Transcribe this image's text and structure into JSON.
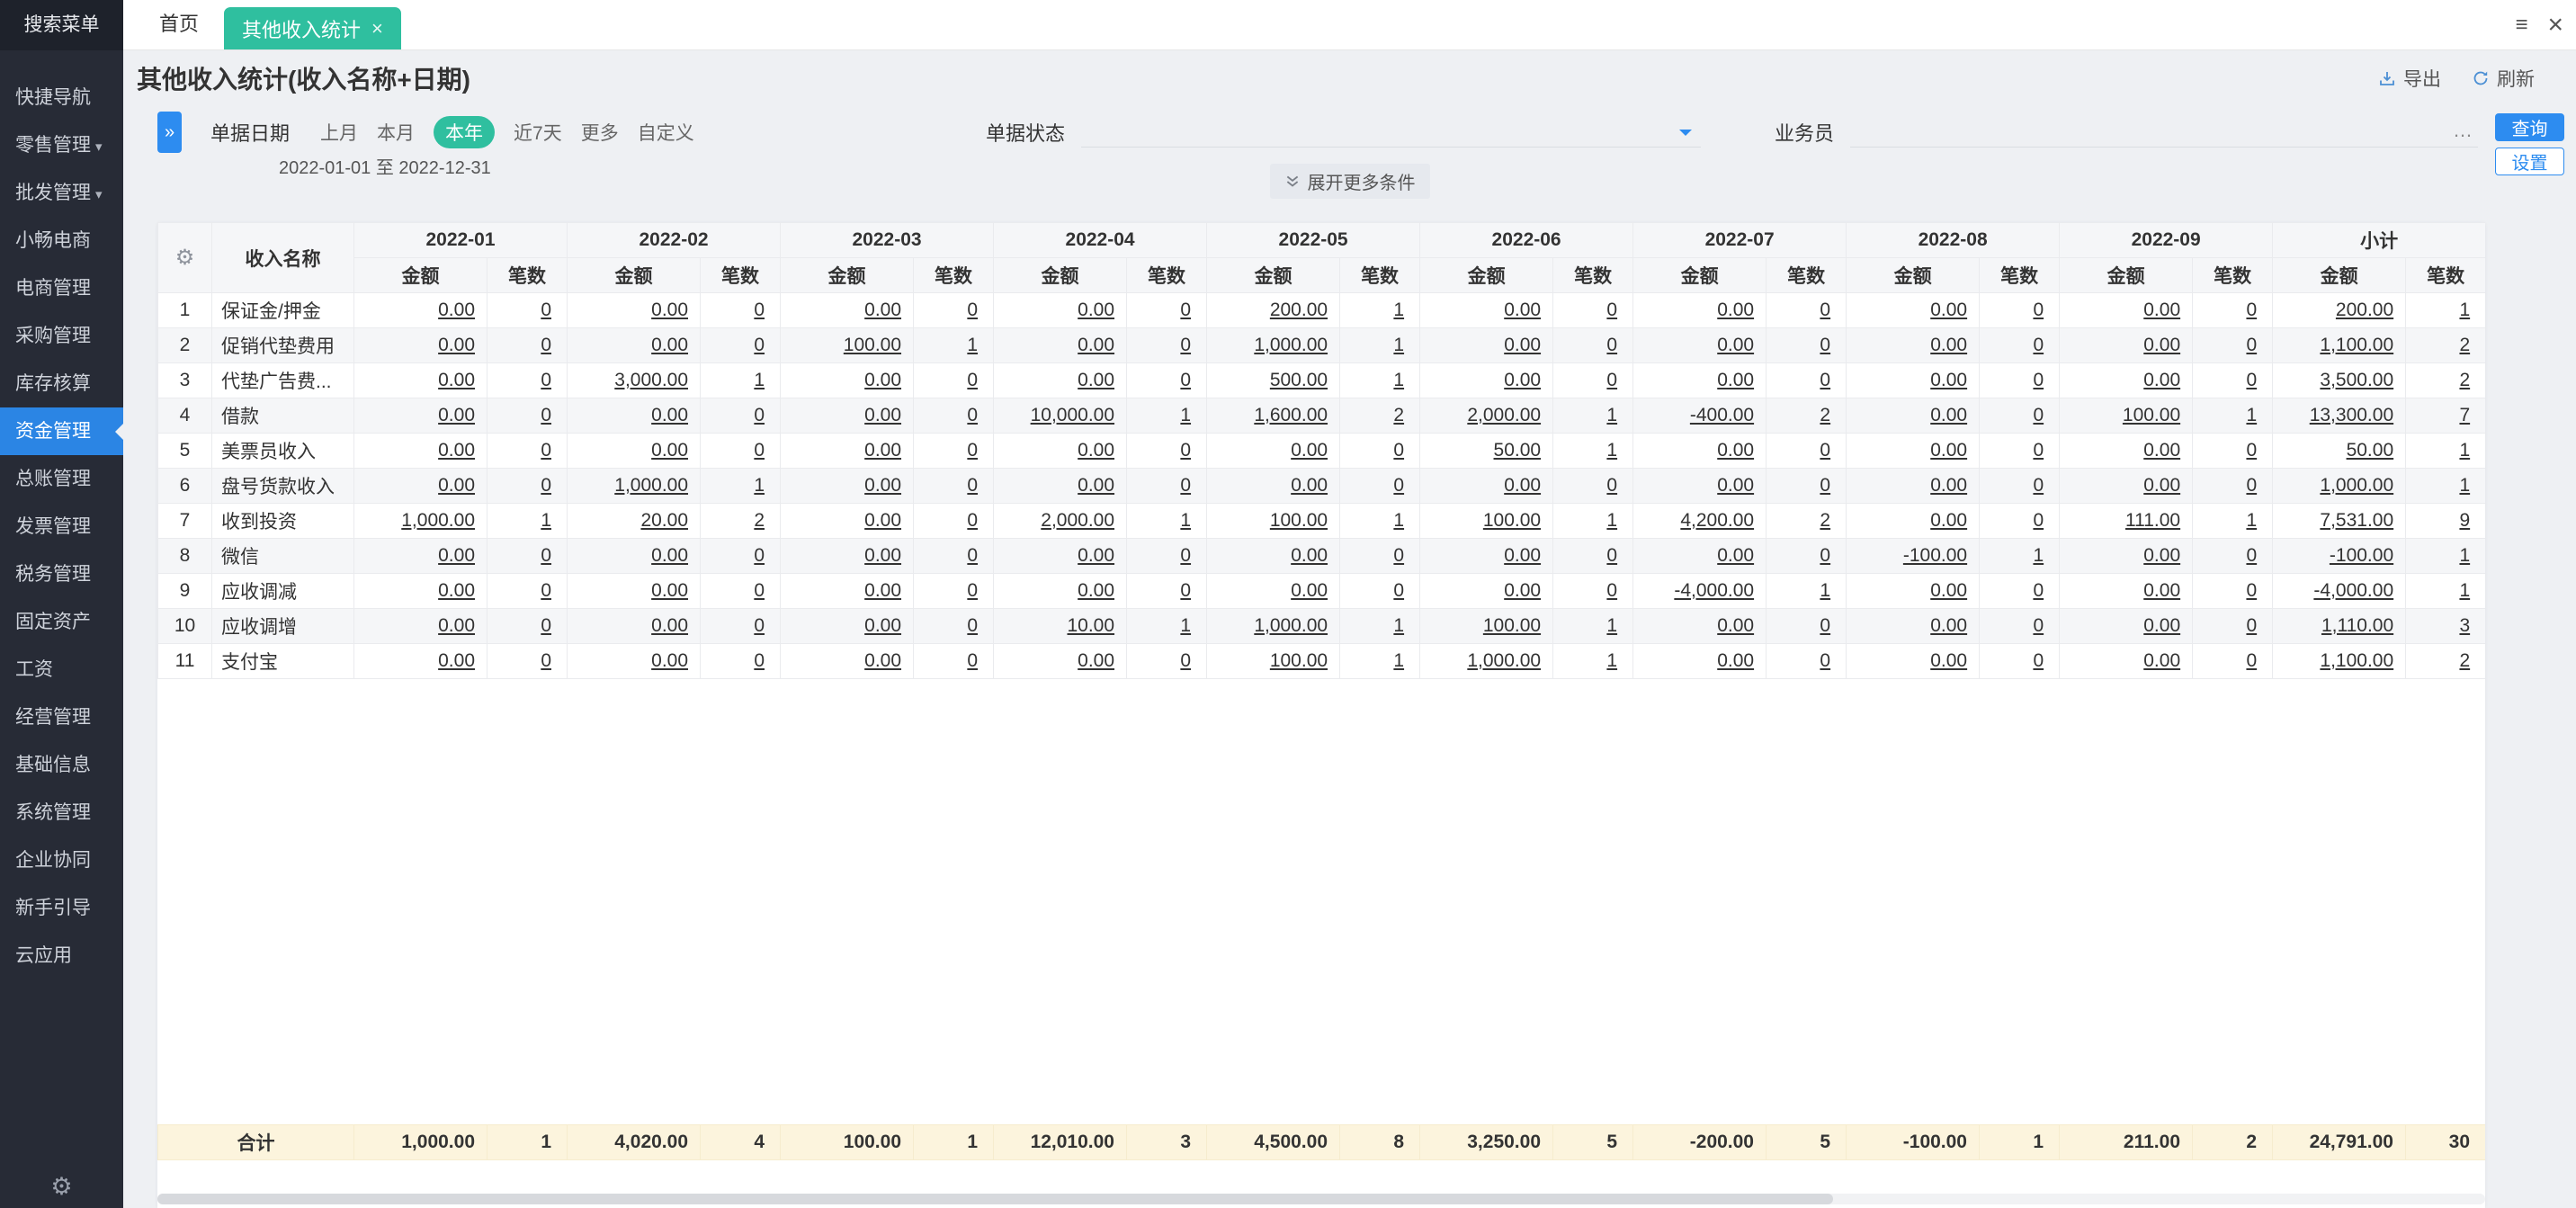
{
  "colors": {
    "accent_blue": "#2d8cf0",
    "tab_green": "#2fbf9f",
    "sidebar_bg": "#272b36",
    "sidebar_selected": "#2b85e4",
    "negative_red": "#e02b2b",
    "totals_bg": "#fcf4dd"
  },
  "icons": {
    "collapse": "»",
    "caret": "▾",
    "gear": "⚙",
    "close": "×",
    "tab_menu": "≡",
    "ellipsis": "…"
  },
  "sidebar": {
    "search_label": "搜索菜单",
    "items": [
      {
        "label": "快捷导航",
        "caret": false,
        "selected": false
      },
      {
        "label": "零售管理",
        "caret": true,
        "selected": false
      },
      {
        "label": "批发管理",
        "caret": true,
        "selected": false
      },
      {
        "label": "小畅电商",
        "caret": false,
        "selected": false
      },
      {
        "label": "电商管理",
        "caret": false,
        "selected": false
      },
      {
        "label": "采购管理",
        "caret": false,
        "selected": false
      },
      {
        "label": "库存核算",
        "caret": false,
        "selected": false
      },
      {
        "label": "资金管理",
        "caret": false,
        "selected": true
      },
      {
        "label": "总账管理",
        "caret": false,
        "selected": false
      },
      {
        "label": "发票管理",
        "caret": false,
        "selected": false
      },
      {
        "label": "税务管理",
        "caret": false,
        "selected": false
      },
      {
        "label": "固定资产",
        "caret": false,
        "selected": false
      },
      {
        "label": "工资",
        "caret": false,
        "selected": false
      },
      {
        "label": "经营管理",
        "caret": false,
        "selected": false
      },
      {
        "label": "基础信息",
        "caret": false,
        "selected": false
      },
      {
        "label": "系统管理",
        "caret": false,
        "selected": false
      },
      {
        "label": "企业协同",
        "caret": false,
        "selected": false
      },
      {
        "label": "新手引导",
        "caret": false,
        "selected": false
      },
      {
        "label": "云应用",
        "caret": false,
        "selected": false
      }
    ]
  },
  "tabbar": {
    "tabs": [
      {
        "label": "首页",
        "active": false,
        "closable": false
      },
      {
        "label": "其他收入统计",
        "active": true,
        "closable": true
      }
    ]
  },
  "page": {
    "title": "其他收入统计(收入名称+日期)",
    "export_label": "导出",
    "refresh_label": "刷新"
  },
  "filters": {
    "date_label": "单据日期",
    "quick_options": [
      "上月",
      "本月",
      "本年",
      "近7天",
      "更多",
      "自定义"
    ],
    "quick_selected": "本年",
    "date_range": "2022-01-01 至 2022-12-31",
    "status_label": "单据状态",
    "salesman_label": "业务员",
    "search_button": "查询",
    "settings_button": "设置",
    "expand_more": "展开更多条件"
  },
  "table": {
    "name_header": "收入名称",
    "amount_header": "金额",
    "count_header": "笔数",
    "subtotal_header": "小计",
    "months": [
      "2022-01",
      "2022-02",
      "2022-03",
      "2022-04",
      "2022-05",
      "2022-06",
      "2022-07",
      "2022-08",
      "2022-09"
    ],
    "rows": [
      {
        "name": "保证金/押金",
        "months": [
          [
            "0.00",
            "0"
          ],
          [
            "0.00",
            "0"
          ],
          [
            "0.00",
            "0"
          ],
          [
            "0.00",
            "0"
          ],
          [
            "200.00",
            "1"
          ],
          [
            "0.00",
            "0"
          ],
          [
            "0.00",
            "0"
          ],
          [
            "0.00",
            "0"
          ],
          [
            "0.00",
            "0"
          ]
        ],
        "subtotal": [
          "200.00",
          "1"
        ]
      },
      {
        "name": "促销代垫费用",
        "months": [
          [
            "0.00",
            "0"
          ],
          [
            "0.00",
            "0"
          ],
          [
            "100.00",
            "1"
          ],
          [
            "0.00",
            "0"
          ],
          [
            "1,000.00",
            "1"
          ],
          [
            "0.00",
            "0"
          ],
          [
            "0.00",
            "0"
          ],
          [
            "0.00",
            "0"
          ],
          [
            "0.00",
            "0"
          ]
        ],
        "subtotal": [
          "1,100.00",
          "2"
        ]
      },
      {
        "name": "代垫广告费...",
        "months": [
          [
            "0.00",
            "0"
          ],
          [
            "3,000.00",
            "1"
          ],
          [
            "0.00",
            "0"
          ],
          [
            "0.00",
            "0"
          ],
          [
            "500.00",
            "1"
          ],
          [
            "0.00",
            "0"
          ],
          [
            "0.00",
            "0"
          ],
          [
            "0.00",
            "0"
          ],
          [
            "0.00",
            "0"
          ]
        ],
        "subtotal": [
          "3,500.00",
          "2"
        ]
      },
      {
        "name": "借款",
        "months": [
          [
            "0.00",
            "0"
          ],
          [
            "0.00",
            "0"
          ],
          [
            "0.00",
            "0"
          ],
          [
            "10,000.00",
            "1"
          ],
          [
            "1,600.00",
            "2"
          ],
          [
            "2,000.00",
            "1"
          ],
          [
            "-400.00",
            "2"
          ],
          [
            "0.00",
            "0"
          ],
          [
            "100.00",
            "1"
          ]
        ],
        "subtotal": [
          "13,300.00",
          "7"
        ]
      },
      {
        "name": "美票员收入",
        "months": [
          [
            "0.00",
            "0"
          ],
          [
            "0.00",
            "0"
          ],
          [
            "0.00",
            "0"
          ],
          [
            "0.00",
            "0"
          ],
          [
            "0.00",
            "0"
          ],
          [
            "50.00",
            "1"
          ],
          [
            "0.00",
            "0"
          ],
          [
            "0.00",
            "0"
          ],
          [
            "0.00",
            "0"
          ]
        ],
        "subtotal": [
          "50.00",
          "1"
        ]
      },
      {
        "name": "盘号货款收入",
        "months": [
          [
            "0.00",
            "0"
          ],
          [
            "1,000.00",
            "1"
          ],
          [
            "0.00",
            "0"
          ],
          [
            "0.00",
            "0"
          ],
          [
            "0.00",
            "0"
          ],
          [
            "0.00",
            "0"
          ],
          [
            "0.00",
            "0"
          ],
          [
            "0.00",
            "0"
          ],
          [
            "0.00",
            "0"
          ]
        ],
        "subtotal": [
          "1,000.00",
          "1"
        ]
      },
      {
        "name": "收到投资",
        "months": [
          [
            "1,000.00",
            "1"
          ],
          [
            "20.00",
            "2"
          ],
          [
            "0.00",
            "0"
          ],
          [
            "2,000.00",
            "1"
          ],
          [
            "100.00",
            "1"
          ],
          [
            "100.00",
            "1"
          ],
          [
            "4,200.00",
            "2"
          ],
          [
            "0.00",
            "0"
          ],
          [
            "111.00",
            "1"
          ]
        ],
        "subtotal": [
          "7,531.00",
          "9"
        ]
      },
      {
        "name": "微信",
        "months": [
          [
            "0.00",
            "0"
          ],
          [
            "0.00",
            "0"
          ],
          [
            "0.00",
            "0"
          ],
          [
            "0.00",
            "0"
          ],
          [
            "0.00",
            "0"
          ],
          [
            "0.00",
            "0"
          ],
          [
            "0.00",
            "0"
          ],
          [
            "-100.00",
            "1"
          ],
          [
            "0.00",
            "0"
          ]
        ],
        "subtotal": [
          "-100.00",
          "1"
        ]
      },
      {
        "name": "应收调减",
        "months": [
          [
            "0.00",
            "0"
          ],
          [
            "0.00",
            "0"
          ],
          [
            "0.00",
            "0"
          ],
          [
            "0.00",
            "0"
          ],
          [
            "0.00",
            "0"
          ],
          [
            "0.00",
            "0"
          ],
          [
            "-4,000.00",
            "1"
          ],
          [
            "0.00",
            "0"
          ],
          [
            "0.00",
            "0"
          ]
        ],
        "subtotal": [
          "-4,000.00",
          "1"
        ]
      },
      {
        "name": "应收调增",
        "months": [
          [
            "0.00",
            "0"
          ],
          [
            "0.00",
            "0"
          ],
          [
            "0.00",
            "0"
          ],
          [
            "10.00",
            "1"
          ],
          [
            "1,000.00",
            "1"
          ],
          [
            "100.00",
            "1"
          ],
          [
            "0.00",
            "0"
          ],
          [
            "0.00",
            "0"
          ],
          [
            "0.00",
            "0"
          ]
        ],
        "subtotal": [
          "1,110.00",
          "3"
        ]
      },
      {
        "name": "支付宝",
        "months": [
          [
            "0.00",
            "0"
          ],
          [
            "0.00",
            "0"
          ],
          [
            "0.00",
            "0"
          ],
          [
            "0.00",
            "0"
          ],
          [
            "100.00",
            "1"
          ],
          [
            "1,000.00",
            "1"
          ],
          [
            "0.00",
            "0"
          ],
          [
            "0.00",
            "0"
          ],
          [
            "0.00",
            "0"
          ]
        ],
        "subtotal": [
          "1,100.00",
          "2"
        ]
      }
    ],
    "total_label": "合计",
    "totals": [
      [
        "1,000.00",
        "1"
      ],
      [
        "4,020.00",
        "4"
      ],
      [
        "100.00",
        "1"
      ],
      [
        "12,010.00",
        "3"
      ],
      [
        "4,500.00",
        "8"
      ],
      [
        "3,250.00",
        "5"
      ],
      [
        "-200.00",
        "5"
      ],
      [
        "-100.00",
        "1"
      ],
      [
        "211.00",
        "2"
      ],
      [
        "24,791.00",
        "30"
      ]
    ]
  }
}
